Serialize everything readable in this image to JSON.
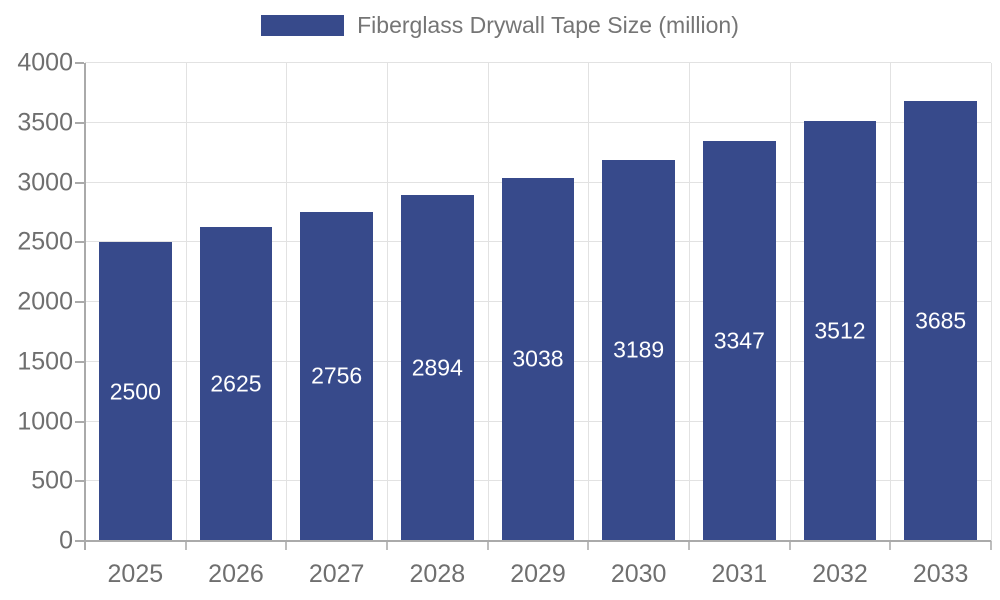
{
  "chart_data": {
    "type": "bar",
    "title": "Fiberglass Drywall Tape Size (million)",
    "legend": [
      "Fiberglass Drywall Tape Size (million)"
    ],
    "legend_position": "top-center",
    "categories": [
      "2025",
      "2026",
      "2027",
      "2028",
      "2029",
      "2030",
      "2031",
      "2032",
      "2033"
    ],
    "values": [
      2500,
      2625,
      2756,
      2894,
      3038,
      3189,
      3347,
      3512,
      3685
    ],
    "value_labels_visible": true,
    "xlabel": "",
    "ylabel": "",
    "ylim": [
      0,
      4000
    ],
    "yticks": [
      0,
      500,
      1000,
      1500,
      2000,
      2500,
      3000,
      3500,
      4000
    ],
    "grid": true
  },
  "colors": {
    "bar": "#374a8b",
    "grid": "#e2e2e2",
    "axis": "#aaaaaa",
    "tick": "#bdbdbd",
    "tick_text": "#6f6f6f",
    "legend_text": "#757575",
    "value_text": "#ffffff",
    "background": "#ffffff"
  }
}
